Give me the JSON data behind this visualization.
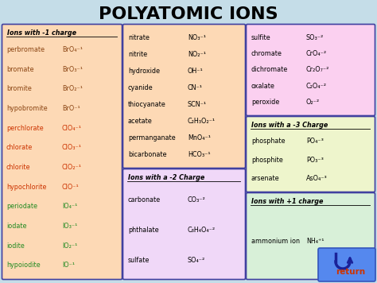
{
  "title": "POLYATOMIC IONS",
  "bg_color": "#c5dde8",
  "title_color": "#000000",
  "box1": {
    "bg": "#fdd9b5",
    "border": "#4040a0",
    "header": "Ions with -1 charge",
    "rows": [
      {
        "name": "perbromate",
        "formula": "BrO₄⁻¹",
        "name_color": "#8b4513",
        "formula_color": "#8b4513"
      },
      {
        "name": "bromate",
        "formula": "BrO₃⁻¹",
        "name_color": "#8b4513",
        "formula_color": "#8b4513"
      },
      {
        "name": "bromite",
        "formula": "BrO₂⁻¹",
        "name_color": "#8b4513",
        "formula_color": "#8b4513"
      },
      {
        "name": "hypobromite",
        "formula": "BrO⁻¹",
        "name_color": "#8b4513",
        "formula_color": "#8b4513"
      },
      {
        "name": "perchlorate",
        "formula": "ClO₄⁻¹",
        "name_color": "#cc3300",
        "formula_color": "#cc3300"
      },
      {
        "name": "chlorate",
        "formula": "ClO₃⁻¹",
        "name_color": "#cc3300",
        "formula_color": "#cc3300"
      },
      {
        "name": "chlorite",
        "formula": "ClO₂⁻¹",
        "name_color": "#cc3300",
        "formula_color": "#cc3300"
      },
      {
        "name": "hypochlorite",
        "formula": "ClO⁻¹",
        "name_color": "#cc3300",
        "formula_color": "#cc3300"
      },
      {
        "name": "periodate",
        "formula": "IO₄⁻¹",
        "name_color": "#228b22",
        "formula_color": "#228b22"
      },
      {
        "name": "iodate",
        "formula": "IO₃⁻¹",
        "name_color": "#228b22",
        "formula_color": "#228b22"
      },
      {
        "name": "iodite",
        "formula": "IO₂⁻¹",
        "name_color": "#228b22",
        "formula_color": "#228b22"
      },
      {
        "name": "hypoiodite",
        "formula": "IO⁻¹",
        "name_color": "#228b22",
        "formula_color": "#228b22"
      }
    ]
  },
  "box2_top": {
    "bg": "#fdd9b5",
    "border": "#4040a0",
    "rows": [
      {
        "name": "nitrate",
        "formula": "NO₃⁻¹",
        "name_color": "#000000",
        "formula_color": "#000000"
      },
      {
        "name": "nitrite",
        "formula": "NO₂⁻¹",
        "name_color": "#000000",
        "formula_color": "#000000"
      },
      {
        "name": "hydroxide",
        "formula": "OH⁻¹",
        "name_color": "#000000",
        "formula_color": "#000000"
      },
      {
        "name": "cyanide",
        "formula": "CN⁻¹",
        "name_color": "#000000",
        "formula_color": "#000000"
      },
      {
        "name": "thiocyanate",
        "formula": "SCN⁻¹",
        "name_color": "#000000",
        "formula_color": "#000000"
      },
      {
        "name": "acetate",
        "formula": "C₂H₃O₂⁻¹",
        "name_color": "#000000",
        "formula_color": "#000000"
      },
      {
        "name": "permanganate",
        "formula": "MnO₄⁻¹",
        "name_color": "#000000",
        "formula_color": "#000000"
      },
      {
        "name": "bicarbonate",
        "formula": "HCO₃⁻¹",
        "name_color": "#000000",
        "formula_color": "#000000"
      }
    ]
  },
  "box2_bot": {
    "bg": "#f0d8f8",
    "border": "#4040a0",
    "header": "Ions with a -2 Charge",
    "rows": [
      {
        "name": "carbonate",
        "formula": "CO₃⁻²",
        "name_color": "#000000",
        "formula_color": "#000000"
      },
      {
        "name": "phthalate",
        "formula": "C₈H₄O₄⁻²",
        "name_color": "#000000",
        "formula_color": "#000000"
      },
      {
        "name": "sulfate",
        "formula": "SO₄⁻²",
        "name_color": "#000000",
        "formula_color": "#000000"
      }
    ]
  },
  "box3_top": {
    "bg": "#fbd0f0",
    "border": "#4040a0",
    "rows": [
      {
        "name": "sulfite",
        "formula": "SO₃⁻²",
        "name_color": "#000000",
        "formula_color": "#000000"
      },
      {
        "name": "chromate",
        "formula": "CrO₄⁻²",
        "name_color": "#000000",
        "formula_color": "#000000"
      },
      {
        "name": "dichromate",
        "formula": "Cr₂O₇⁻²",
        "name_color": "#000000",
        "formula_color": "#000000"
      },
      {
        "name": "oxalate",
        "formula": "C₂O₄⁻²",
        "name_color": "#000000",
        "formula_color": "#000000"
      },
      {
        "name": "peroxide",
        "formula": "O₂⁻²",
        "name_color": "#000000",
        "formula_color": "#000000"
      }
    ]
  },
  "box3_mid": {
    "bg": "#eef5cc",
    "border": "#4040a0",
    "header": "Ions with a -3 Charge",
    "rows": [
      {
        "name": "phosphate",
        "formula": "PO₄⁻³",
        "name_color": "#000000",
        "formula_color": "#000000"
      },
      {
        "name": "phosphite",
        "formula": "PO₃⁻³",
        "name_color": "#000000",
        "formula_color": "#000000"
      },
      {
        "name": "arsenate",
        "formula": "AsO₄⁻³",
        "name_color": "#000000",
        "formula_color": "#000000"
      }
    ]
  },
  "box3_bot": {
    "bg": "#d8f0d8",
    "border": "#4040a0",
    "header": "Ions with +1 charge",
    "rows": [
      {
        "name": "ammonium ion",
        "formula": "NH₄⁺¹",
        "name_color": "#000000",
        "formula_color": "#000000"
      }
    ]
  },
  "return_btn": {
    "bg": "#5588ee",
    "text": "return",
    "text_color": "#cc3300",
    "arrow_color": "#1a2299"
  }
}
